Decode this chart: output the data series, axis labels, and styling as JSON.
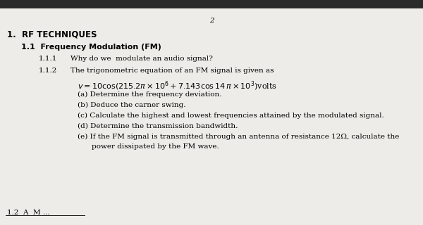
{
  "bg_color": "#eeece8",
  "top_bar_color": "#2a2a2a",
  "page_number": "2",
  "heading": "1.  RF TECHNIQUES",
  "subheading": "1.1  Frequency Modulation (FM)",
  "item111_num": "1.1.1",
  "item111_text": "Why do we  modulate an audio signal?",
  "item112_num": "1.1.2",
  "item112_text": "The trigonometric equation of an FM signal is given as",
  "equation": "$v = 10\\cos(215.2\\pi \\times 10^{6} + 7.143\\cos 14\\,\\pi \\times 10^{3})$volts",
  "qa": "(a) Determine the frequency deviation.",
  "qb": "(b) Deduce the carner swing.",
  "qc": "(c) Calculate the highest and lowest frequencies attained by the modulated signal.",
  "qd": "(d) Determine the transmission bandwidth.",
  "qe1": "(e) If the FM signal is transmitted through an antenna of resistance 12Ω, calculate the",
  "qe2": "power dissipated by the FM wave.",
  "bottom_text": "1.2  A  M ..."
}
